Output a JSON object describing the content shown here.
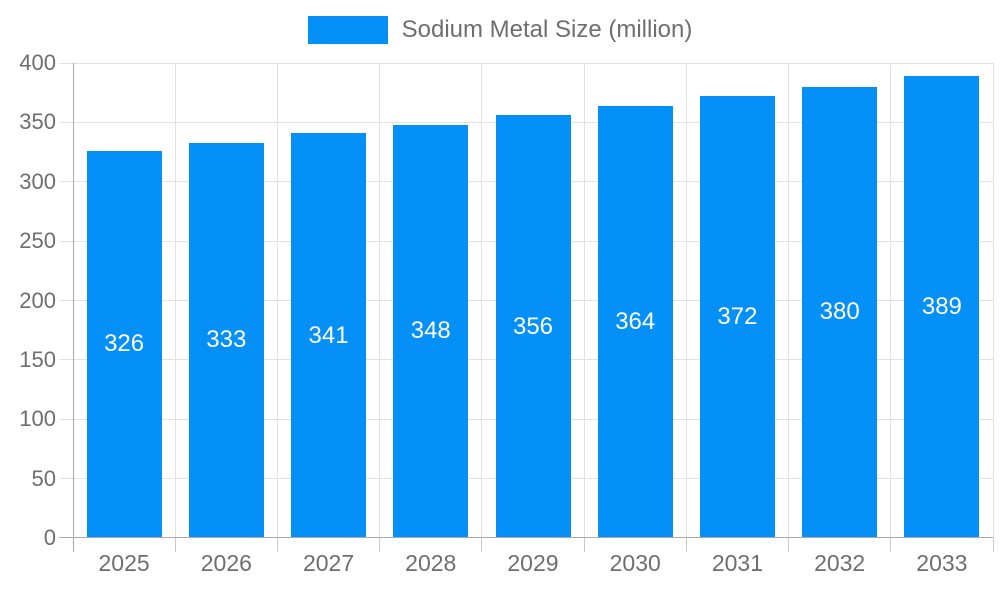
{
  "legend": {
    "label": "Sodium Metal Size (million)"
  },
  "colors": {
    "bar": "#0590f7",
    "axis_line": "#aaaaaa",
    "gridline": "#e2e2e2",
    "tick": "#c9c9c9",
    "axis_text": "#6e6e6e",
    "value_text": "#ffffff",
    "background": "#ffffff"
  },
  "chart_data": {
    "type": "bar",
    "title": "Sodium Metal Size (million)",
    "categories": [
      "2025",
      "2026",
      "2027",
      "2028",
      "2029",
      "2030",
      "2031",
      "2032",
      "2033"
    ],
    "values": [
      326,
      333,
      341,
      348,
      356,
      364,
      372,
      380,
      389
    ],
    "xlabel": "",
    "ylabel": "",
    "ylim": [
      0,
      400
    ],
    "yticks": [
      0,
      50,
      100,
      150,
      200,
      250,
      300,
      350,
      400
    ],
    "grid": true,
    "legend_position": "top-center",
    "value_labels": "inside-center"
  }
}
